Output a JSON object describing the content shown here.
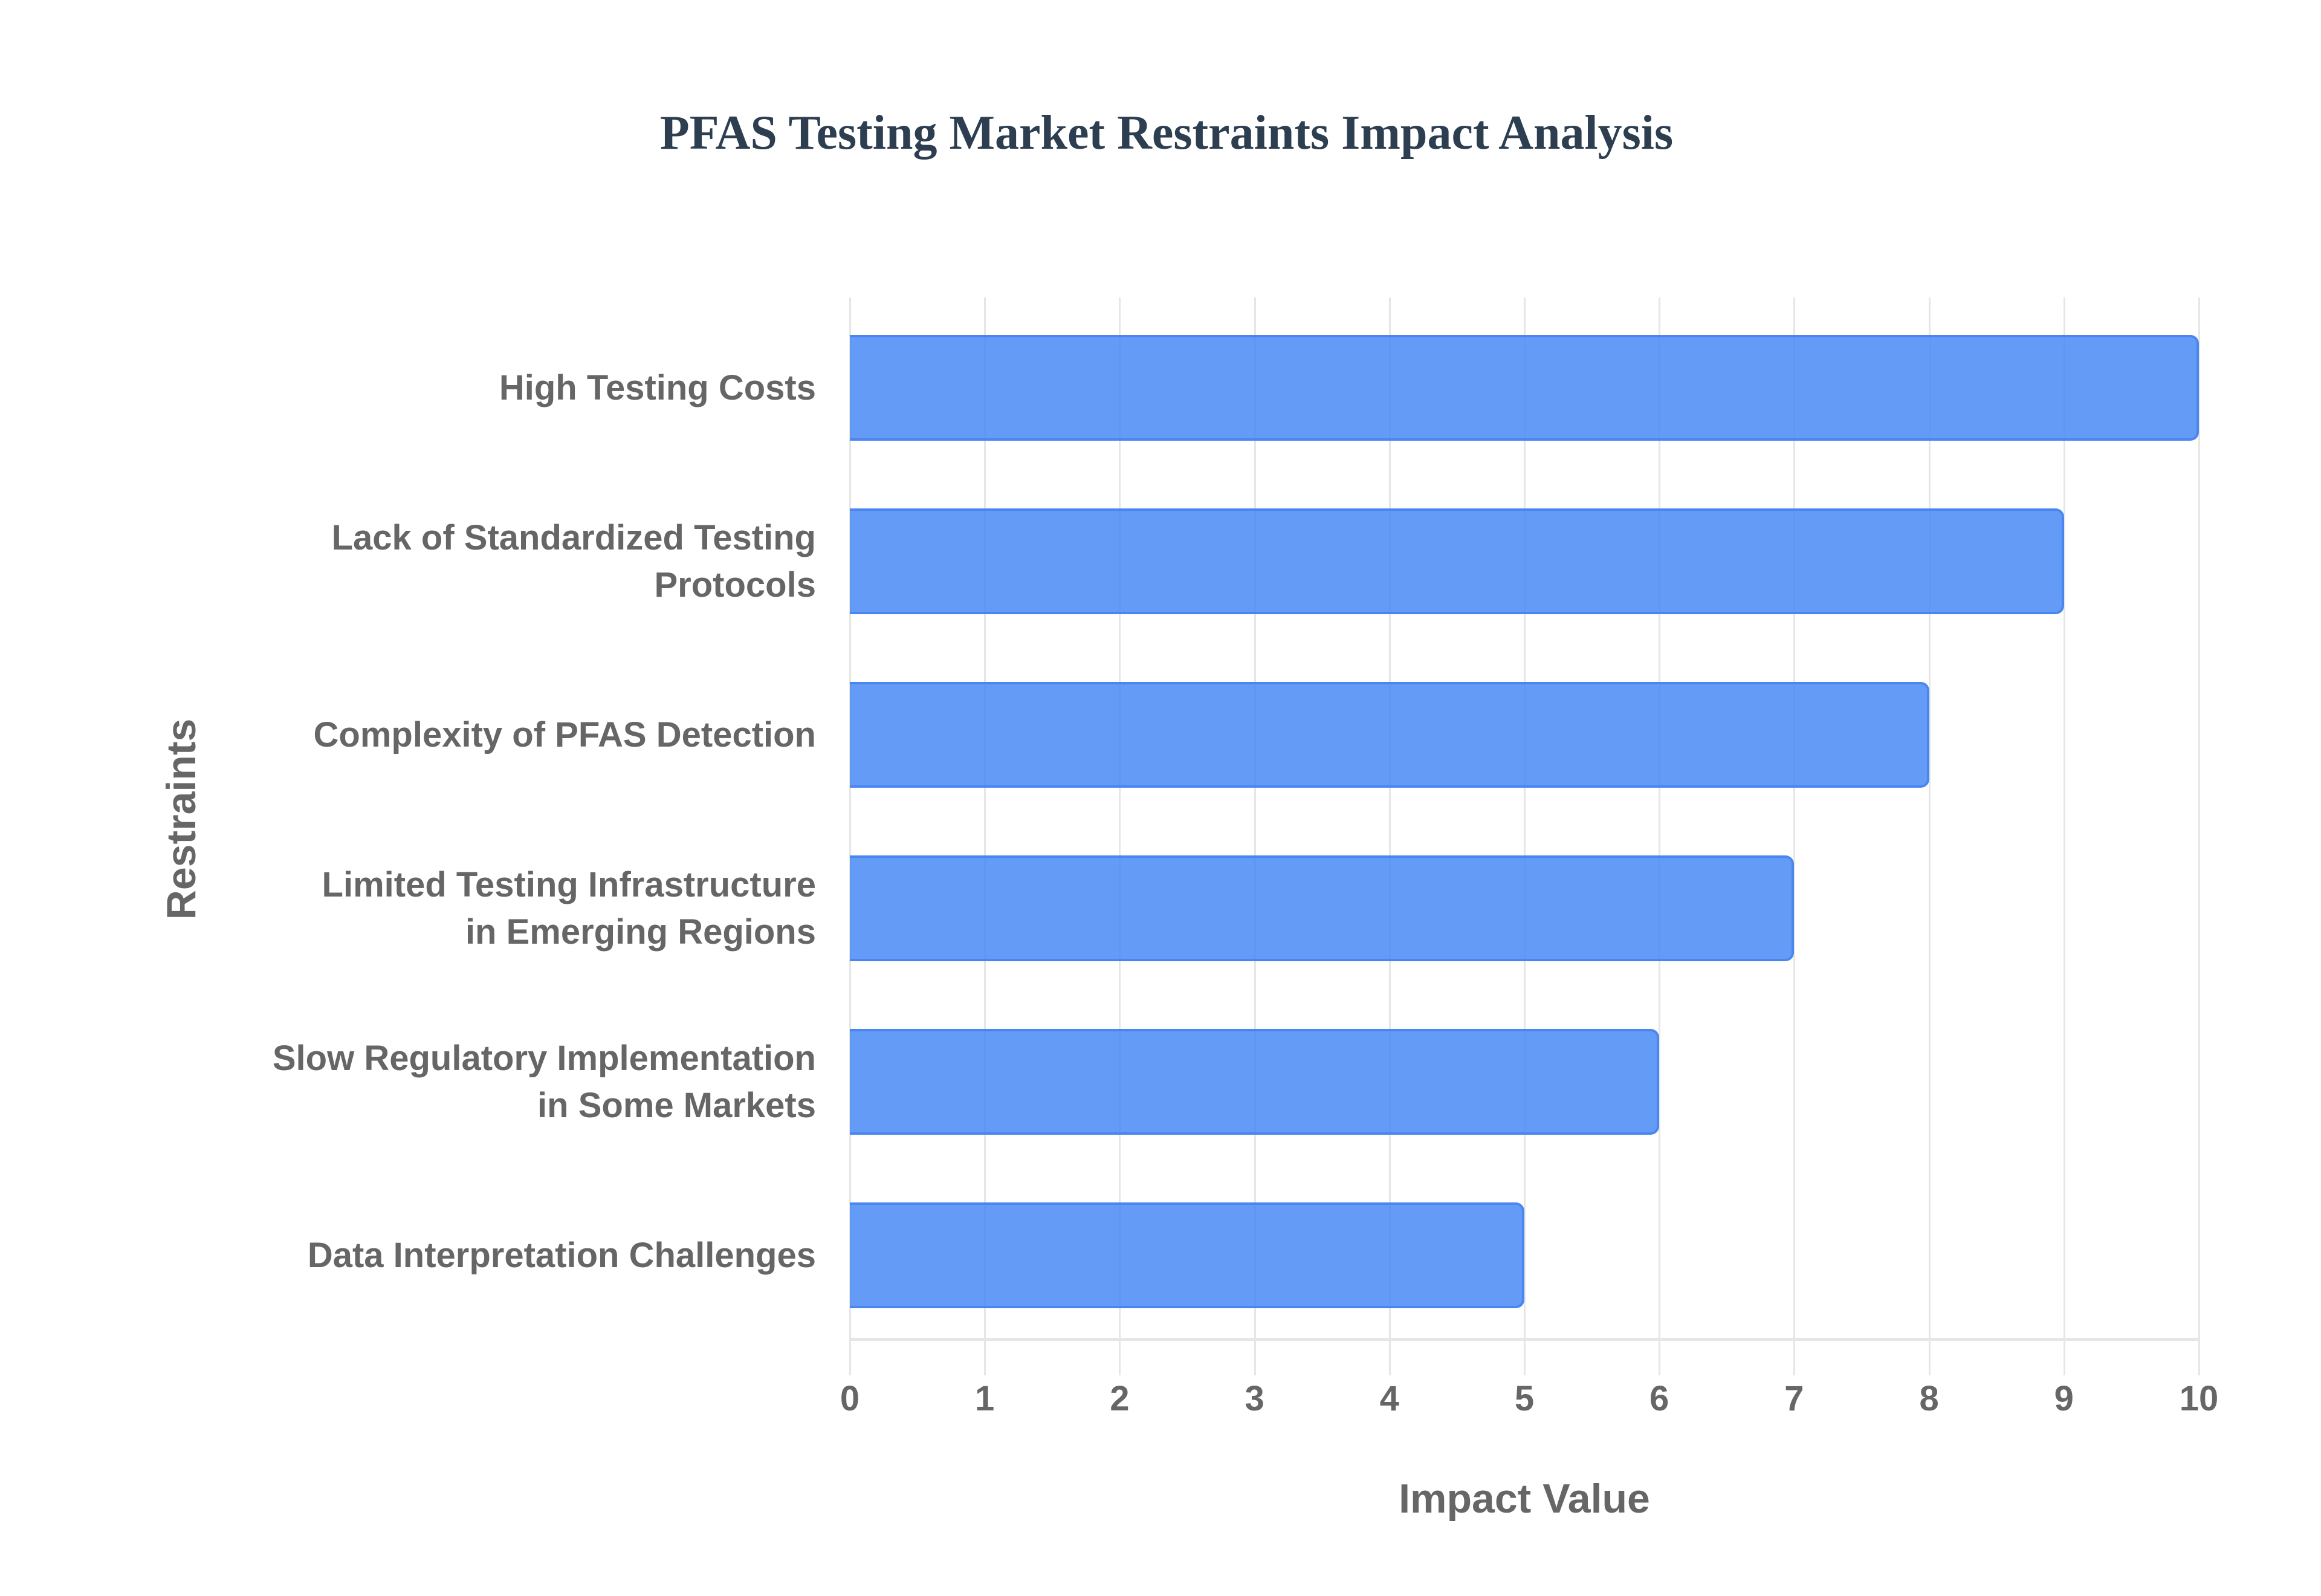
{
  "title": "PFAS Testing Market Restraints Impact Analysis",
  "chart_data": {
    "type": "bar",
    "orientation": "horizontal",
    "title": "PFAS Testing Market Restraints Impact Analysis",
    "xlabel": "Impact Value",
    "ylabel": "Restraints",
    "xlim": [
      0,
      10
    ],
    "x_ticks": [
      "0",
      "1",
      "2",
      "3",
      "4",
      "5",
      "6",
      "7",
      "8",
      "9",
      "10"
    ],
    "grid": true,
    "legend": null,
    "categories": [
      "High Testing Costs",
      "Lack of Standardized Testing Protocols",
      "Complexity of PFAS Detection",
      "Limited Testing Infrastructure in Emerging Regions",
      "Slow Regulatory Implementation in Some Markets",
      "Data Interpretation Challenges"
    ],
    "category_display": [
      "High Testing Costs",
      "Lack of Standardized Testing\nProtocols",
      "Complexity of PFAS Detection",
      "Limited Testing Infrastructure\nin Emerging Regions",
      "Slow Regulatory Implementation\nin Some Markets",
      "Data Interpretation Challenges"
    ],
    "values": [
      10,
      9,
      8,
      7,
      6,
      5
    ],
    "colors": {
      "bar_fill": "#4285f4",
      "bar_border": "#4a86f0",
      "text": "#666666",
      "title": "#2c3e50",
      "grid": "#e6e6e6"
    }
  }
}
